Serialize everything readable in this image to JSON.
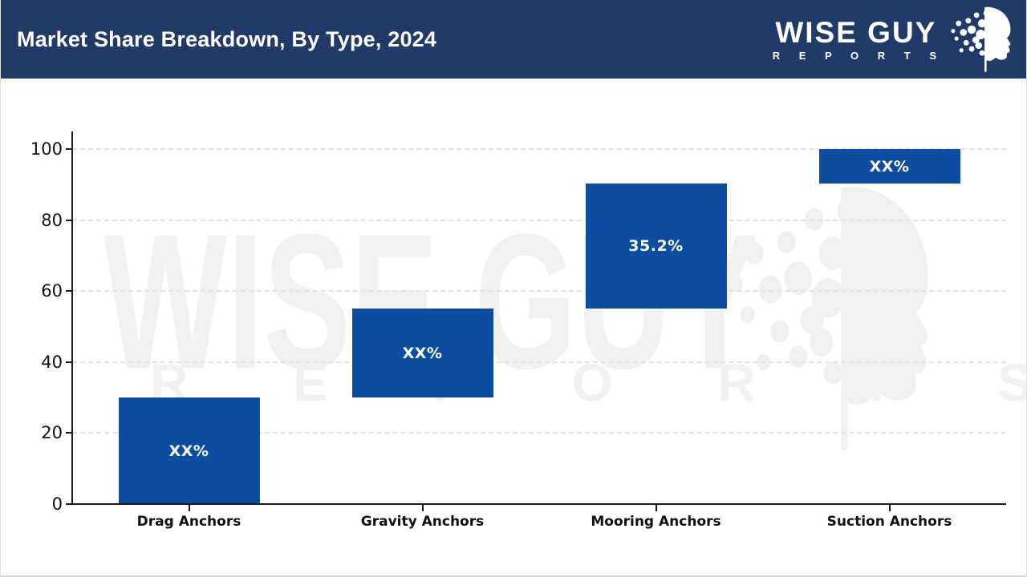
{
  "header": {
    "title": "Market Share Breakdown, By Type, 2024",
    "background_color": "#213a68",
    "logo": {
      "line1": "WISE GUY",
      "line2": "R E P O R T S",
      "head_icon": "dotted-face-profile"
    }
  },
  "watermark": {
    "line1": "WISE GUY",
    "line2": "R E P O R T S",
    "face_icon": "dotted-face-profile",
    "color": "#f1f1f2"
  },
  "chart_data": {
    "type": "bar",
    "subtype": "waterfall-floating-bars",
    "title": "Market Share Breakdown, By Type, 2024",
    "categories": [
      "Drag Anchors",
      "Gravity Anchors",
      "Mooring Anchors",
      "Suction Anchors"
    ],
    "segments": [
      {
        "category": "Drag Anchors",
        "start": 0,
        "end": 30,
        "value_label": "XX%"
      },
      {
        "category": "Gravity Anchors",
        "start": 30,
        "end": 55,
        "value_label": "XX%"
      },
      {
        "category": "Mooring Anchors",
        "start": 55,
        "end": 90.2,
        "value_label": "35.2%"
      },
      {
        "category": "Suction Anchors",
        "start": 90.2,
        "end": 100,
        "value_label": "XX%"
      }
    ],
    "xlabel": "",
    "ylabel": "",
    "ylim": [
      0,
      100
    ],
    "yticks": [
      0,
      20,
      40,
      60,
      80,
      100
    ],
    "grid": "horizontal-dashed",
    "legend": "none",
    "bar_color": "#0c4da2",
    "bar_label_color": "#ffffff",
    "axis_color": "#1a1a1a"
  }
}
